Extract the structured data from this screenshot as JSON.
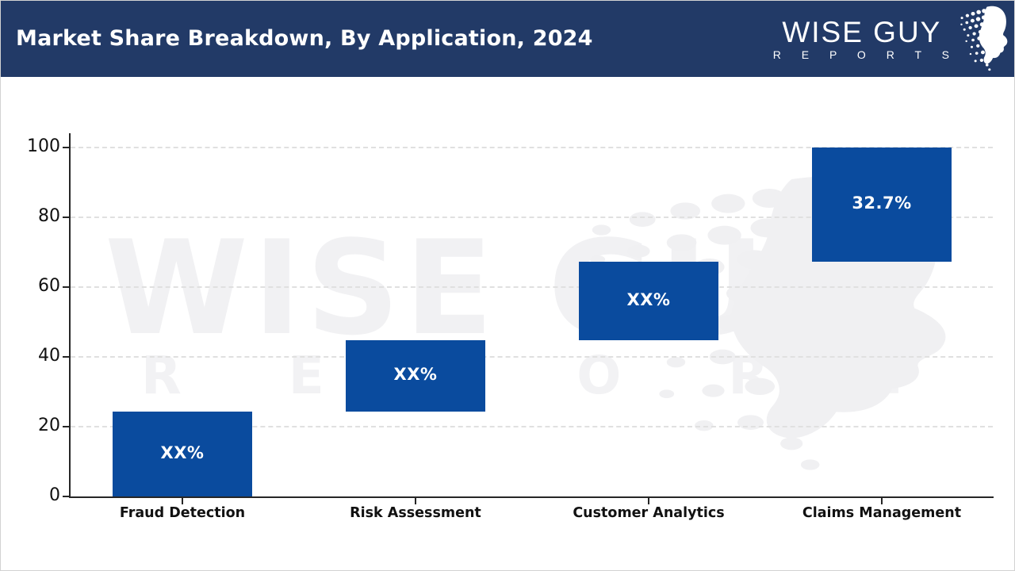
{
  "header": {
    "title": "Market Share Breakdown, By Application, 2024",
    "logo": {
      "name": "WISE GUY",
      "tagline": "R E P O R T S"
    }
  },
  "watermark": {
    "line1": "WISE GUY",
    "line2": "R E P O R T S"
  },
  "chart_data": {
    "type": "bar",
    "subtype": "waterfall",
    "title": "Market Share Breakdown, By Application, 2024",
    "categories": [
      "Fraud Detection",
      "Risk Assessment",
      "Customer Analytics",
      "Claims Management"
    ],
    "values": [
      24.3,
      20.4,
      22.6,
      32.7
    ],
    "segment_ranges": [
      [
        0,
        24.3
      ],
      [
        24.3,
        44.7
      ],
      [
        44.7,
        67.3
      ],
      [
        67.3,
        100
      ]
    ],
    "bar_labels": [
      "XX%",
      "XX%",
      "XX%",
      "32.7%"
    ],
    "xlabel": "",
    "ylabel": "",
    "ylim": [
      0,
      100
    ],
    "yticks": [
      0,
      20,
      40,
      60,
      80,
      100
    ],
    "grid": "horizontal-dashed",
    "legend": "none",
    "bar_color": "#0a4b9e",
    "bar_label_color": "#ffffff"
  },
  "colors": {
    "header_bg": "#223a67",
    "header_text": "#ffffff",
    "axis": "#262626",
    "gridline": "#e0e0e0",
    "tick_text": "#111111",
    "watermark": "#f0f0f2",
    "page_bg": "#ffffff"
  }
}
